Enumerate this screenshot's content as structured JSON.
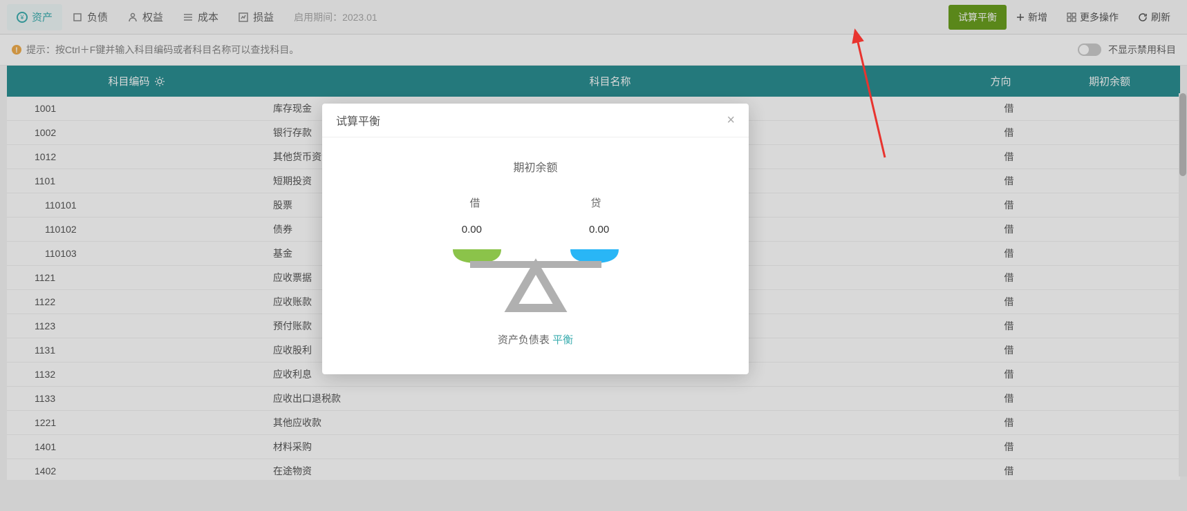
{
  "toolbar": {
    "tabs": [
      {
        "label": "资产",
        "active": true
      },
      {
        "label": "负债"
      },
      {
        "label": "权益"
      },
      {
        "label": "成本"
      },
      {
        "label": "损益"
      }
    ],
    "period_prefix": "启用期间：",
    "period_value": "2023.01",
    "trial_balance": "试算平衡",
    "add": "新增",
    "more_ops": "更多操作",
    "refresh": "刷新"
  },
  "hint": {
    "prefix": "提示：",
    "text": "按Ctrl＋F键并输入科目编码或者科目名称可以查找科目。",
    "toggle_label": "不显示禁用科目"
  },
  "table": {
    "headers": {
      "code": "科目编码",
      "name": "科目名称",
      "dir": "方向",
      "bal": "期初余额"
    },
    "rows": [
      {
        "code": "1001",
        "name": "库存现金",
        "dir": "借",
        "indent": false
      },
      {
        "code": "1002",
        "name": "银行存款",
        "dir": "借",
        "indent": false
      },
      {
        "code": "1012",
        "name": "其他货币资金",
        "dir": "借",
        "indent": false
      },
      {
        "code": "1101",
        "name": "短期投资",
        "dir": "借",
        "indent": false
      },
      {
        "code": "110101",
        "name": "股票",
        "dir": "借",
        "indent": true
      },
      {
        "code": "110102",
        "name": "债券",
        "dir": "借",
        "indent": true
      },
      {
        "code": "110103",
        "name": "基金",
        "dir": "借",
        "indent": true
      },
      {
        "code": "1121",
        "name": "应收票据",
        "dir": "借",
        "indent": false
      },
      {
        "code": "1122",
        "name": "应收账款",
        "dir": "借",
        "indent": false
      },
      {
        "code": "1123",
        "name": "预付账款",
        "dir": "借",
        "indent": false
      },
      {
        "code": "1131",
        "name": "应收股利",
        "dir": "借",
        "indent": false
      },
      {
        "code": "1132",
        "name": "应收利息",
        "dir": "借",
        "indent": false
      },
      {
        "code": "1133",
        "name": "应收出口退税款",
        "dir": "借",
        "indent": false
      },
      {
        "code": "1221",
        "name": "其他应收款",
        "dir": "借",
        "indent": false
      },
      {
        "code": "1401",
        "name": "材料采购",
        "dir": "借",
        "indent": false
      },
      {
        "code": "1402",
        "name": "在途物资",
        "dir": "借",
        "indent": false
      }
    ]
  },
  "modal": {
    "title": "试算平衡",
    "subtitle": "期初余额",
    "debit_label": "借",
    "credit_label": "贷",
    "debit_value": "0.00",
    "credit_value": "0.00",
    "balance_prefix": "资产负债表",
    "balance_status": "平衡",
    "colors": {
      "debit_bowl": "#8bc34a",
      "credit_bowl": "#29b6f6",
      "beam": "#b0b0b0"
    }
  },
  "annotation": {
    "arrow_color": "#e8342f"
  }
}
